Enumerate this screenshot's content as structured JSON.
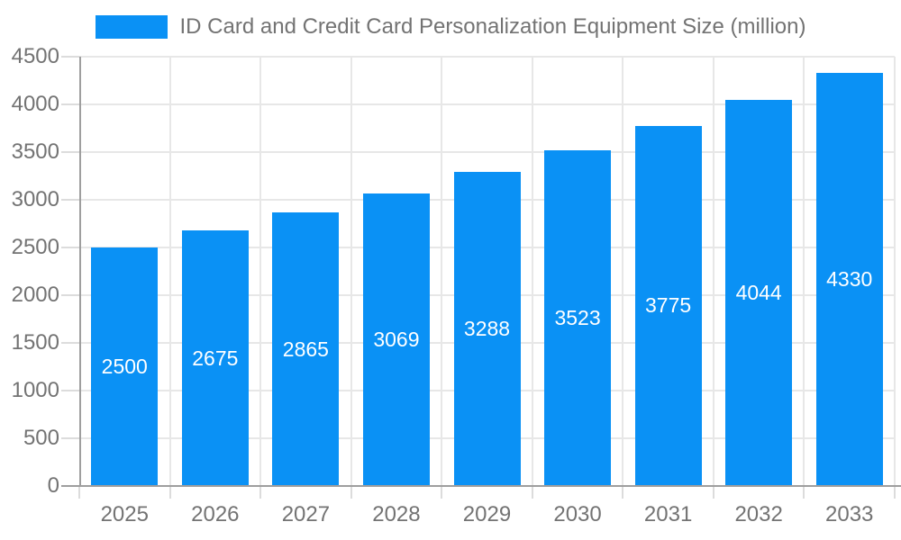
{
  "chart_data": {
    "type": "bar",
    "title": "ID Card and Credit Card Personalization Equipment Size (million)",
    "categories": [
      "2025",
      "2026",
      "2027",
      "2028",
      "2029",
      "2030",
      "2031",
      "2032",
      "2033"
    ],
    "values": [
      2500,
      2675,
      2865,
      3069,
      3288,
      3523,
      3775,
      4044,
      4330
    ],
    "xlabel": "",
    "ylabel": "",
    "ylim": [
      0,
      4500
    ],
    "ytick_step": 500,
    "yticks": [
      0,
      500,
      1000,
      1500,
      2000,
      2500,
      3000,
      3500,
      4000,
      4500
    ],
    "grid": true,
    "legend_position": "top-center",
    "value_label_position": "inside-center",
    "colors": {
      "bar": "#0a91f5",
      "bar_label": "#ffffff",
      "axis_line": "#9e9e9e",
      "grid_line": "#e7e7e7",
      "tick_line": "#dcdcdc",
      "tick_label": "#737373",
      "legend_text": "#737373",
      "background": "#ffffff"
    }
  }
}
